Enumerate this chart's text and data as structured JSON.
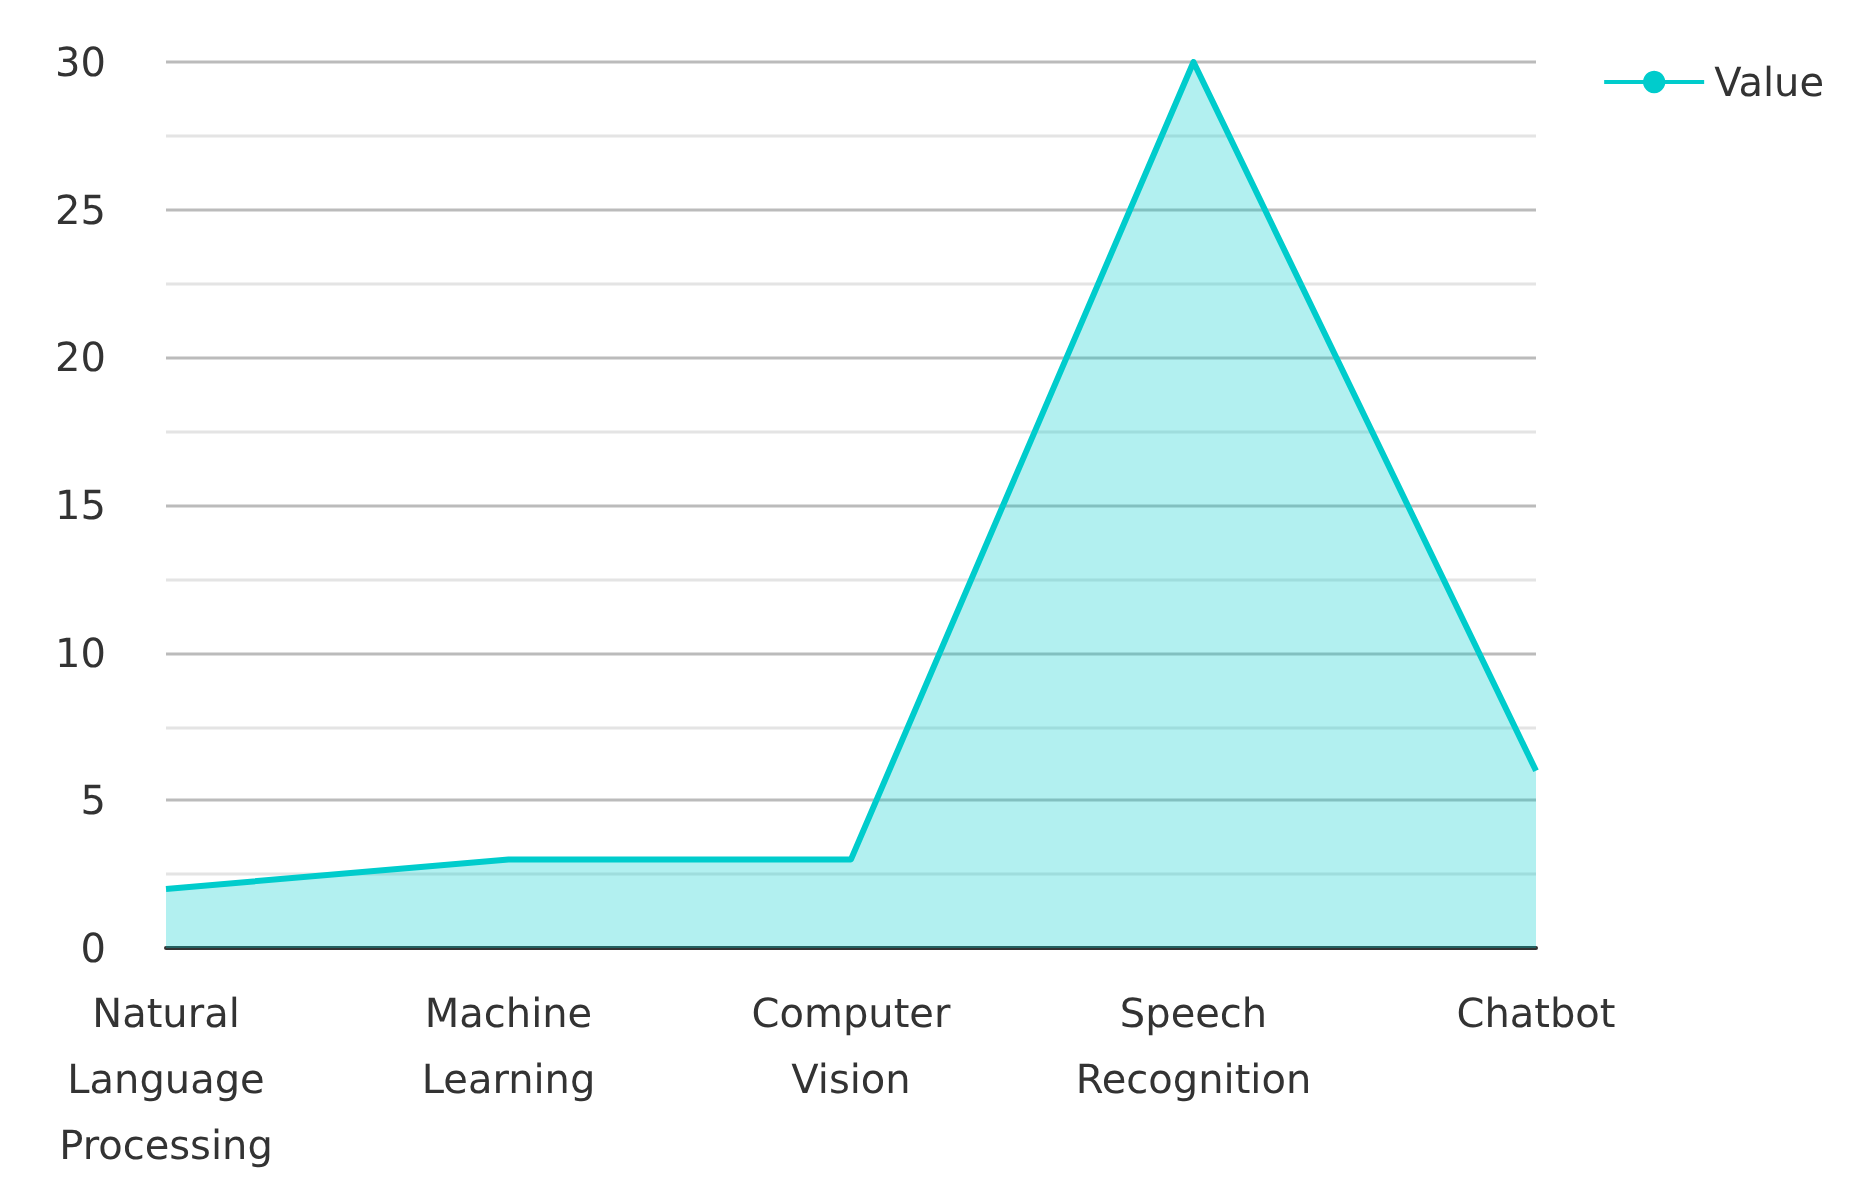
{
  "chart_data": {
    "type": "area",
    "categories": [
      "Natural Language Processing",
      "Machine Learning",
      "Computer Vision",
      "Speech Recognition",
      "Chatbot"
    ],
    "series": [
      {
        "name": "Value",
        "color": "#00cccc",
        "values": [
          2,
          3,
          3,
          30,
          6
        ]
      }
    ],
    "ylim": [
      0,
      30
    ],
    "yticks": [
      0,
      5,
      10,
      15,
      20,
      25,
      30
    ],
    "grid": "y",
    "legend": "top right",
    "marker": "none",
    "line_style": "solid"
  }
}
